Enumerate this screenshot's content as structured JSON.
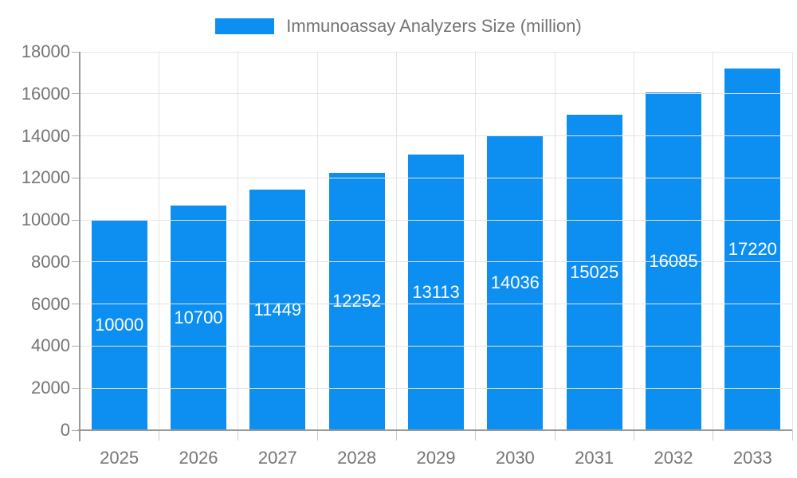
{
  "legend": {
    "label": "Immunoassay Analyzers Size (million)"
  },
  "chart_data": {
    "type": "bar",
    "title": "Immunoassay Analyzers Size (million)",
    "series_name": "Immunoassay Analyzers Size (million)",
    "categories": [
      "2025",
      "2026",
      "2027",
      "2028",
      "2029",
      "2030",
      "2031",
      "2032",
      "2033"
    ],
    "values": [
      10000,
      10700,
      11449,
      12252,
      13113,
      14036,
      15025,
      16085,
      17220
    ],
    "value_labels": [
      "10000",
      "10700",
      "11449",
      "12252",
      "13113",
      "14036",
      "15025",
      "16085",
      "17220"
    ],
    "xlabel": "",
    "ylabel": "",
    "ylim": [
      0,
      18000
    ],
    "yticks": [
      0,
      2000,
      4000,
      6000,
      8000,
      10000,
      12000,
      14000,
      16000,
      18000
    ],
    "grid": true,
    "legend_position": "top",
    "colors": {
      "bar": "#0D8FF2",
      "value_label": "#FFFFFF",
      "axis_label": "#757575",
      "gridline": "#E4E4E4",
      "axis_line": "#999999",
      "y_tick": "#AAAAAA",
      "x_tick": "#CCCCCC"
    }
  }
}
